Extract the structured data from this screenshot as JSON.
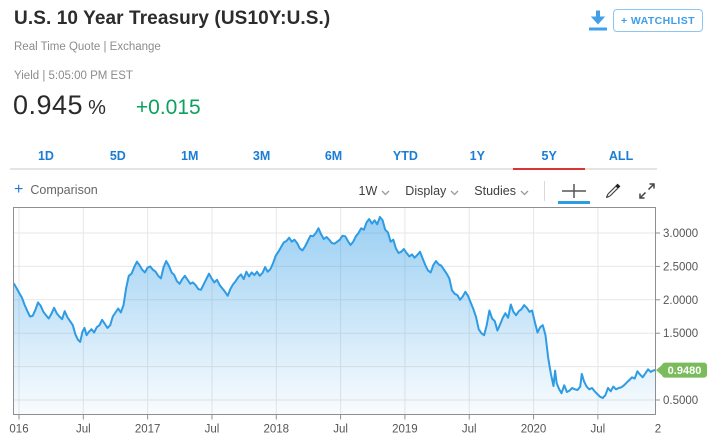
{
  "header": {
    "title": "U.S. 10 Year Treasury (US10Y:U.S.)",
    "subtitle": "Real Time Quote | Exchange",
    "watchlist_label": "+ WATCHLIST"
  },
  "quote": {
    "label": "Yield | 5:05:00 PM EST",
    "value": "0.945",
    "unit": "%",
    "change": "+0.015"
  },
  "range_tabs": {
    "items": [
      "1D",
      "5D",
      "1M",
      "3M",
      "6M",
      "YTD",
      "1Y",
      "5Y",
      "ALL"
    ],
    "selected": "5Y"
  },
  "toolbar": {
    "comparison_label": "Comparison",
    "interval_label": "1W",
    "display_label": "Display",
    "studies_label": "Studies"
  },
  "colors": {
    "accent_blue": "#1b7dd4",
    "change_green": "#0ca15c",
    "selected_tab_red": "#d93535",
    "chart_line_blue": "#2e9be5",
    "badge_green": "#7abc5c",
    "grid_gray": "#e7e7e7",
    "axis_border_gray": "#8f8f8f",
    "tick_text_gray": "#555555"
  },
  "chart_data": {
    "type": "area",
    "series_name": "U.S. 10 Year Treasury yield (5Y, 1W interval)",
    "x_unit": "months since Jan 2016",
    "xlim": [
      0,
      60
    ],
    "ylim": [
      0.29,
      3.39
    ],
    "grid": true,
    "legend": false,
    "y_axis_side": "right",
    "y_gridlines": [
      0.5,
      1.0,
      1.5,
      2.0,
      2.5,
      3.0
    ],
    "y_ticks": [
      {
        "v": 3.0,
        "label": "3.0000"
      },
      {
        "v": 2.5,
        "label": "2.5000"
      },
      {
        "v": 2.0,
        "label": "2.0000"
      },
      {
        "v": 1.5,
        "label": "1.5000"
      },
      {
        "v": 0.5,
        "label": "0.5000"
      }
    ],
    "x_ticks": [
      {
        "t": 0,
        "label": "016"
      },
      {
        "t": 6,
        "label": "Jul"
      },
      {
        "t": 12,
        "label": "2017"
      },
      {
        "t": 18,
        "label": "Jul"
      },
      {
        "t": 24,
        "label": "2018"
      },
      {
        "t": 30,
        "label": "Jul"
      },
      {
        "t": 36,
        "label": "2019"
      },
      {
        "t": 42,
        "label": "Jul"
      },
      {
        "t": 48,
        "label": "2020"
      },
      {
        "t": 54,
        "label": "Jul"
      },
      {
        "t": 60,
        "label": "2"
      }
    ],
    "last_price": {
      "value": 0.948,
      "label": "0.9480"
    },
    "points": [
      [
        0,
        2.24
      ],
      [
        0.25,
        2.17
      ],
      [
        0.5,
        2.1
      ],
      [
        0.75,
        2.03
      ],
      [
        1,
        1.92
      ],
      [
        1.25,
        1.83
      ],
      [
        1.5,
        1.75
      ],
      [
        1.75,
        1.76
      ],
      [
        2,
        1.85
      ],
      [
        2.25,
        1.96
      ],
      [
        2.5,
        1.91
      ],
      [
        2.75,
        1.82
      ],
      [
        3,
        1.77
      ],
      [
        3.25,
        1.72
      ],
      [
        3.5,
        1.79
      ],
      [
        3.75,
        1.88
      ],
      [
        4,
        1.8
      ],
      [
        4.25,
        1.75
      ],
      [
        4.5,
        1.71
      ],
      [
        4.75,
        1.83
      ],
      [
        5,
        1.74
      ],
      [
        5.25,
        1.68
      ],
      [
        5.5,
        1.62
      ],
      [
        5.75,
        1.48
      ],
      [
        6,
        1.4
      ],
      [
        6.2,
        1.37
      ],
      [
        6.4,
        1.52
      ],
      [
        6.6,
        1.58
      ],
      [
        6.8,
        1.47
      ],
      [
        7,
        1.52
      ],
      [
        7.25,
        1.56
      ],
      [
        7.5,
        1.51
      ],
      [
        7.75,
        1.59
      ],
      [
        8,
        1.62
      ],
      [
        8.25,
        1.7
      ],
      [
        8.5,
        1.64
      ],
      [
        8.75,
        1.58
      ],
      [
        9,
        1.62
      ],
      [
        9.25,
        1.75
      ],
      [
        9.5,
        1.81
      ],
      [
        9.75,
        1.87
      ],
      [
        10,
        1.81
      ],
      [
        10.25,
        1.92
      ],
      [
        10.5,
        2.18
      ],
      [
        10.75,
        2.36
      ],
      [
        11,
        2.39
      ],
      [
        11.25,
        2.49
      ],
      [
        11.5,
        2.57
      ],
      [
        11.75,
        2.52
      ],
      [
        12,
        2.45
      ],
      [
        12.25,
        2.41
      ],
      [
        12.5,
        2.48
      ],
      [
        12.75,
        2.5
      ],
      [
        13,
        2.45
      ],
      [
        13.25,
        2.42
      ],
      [
        13.5,
        2.36
      ],
      [
        13.75,
        2.32
      ],
      [
        14,
        2.49
      ],
      [
        14.25,
        2.58
      ],
      [
        14.5,
        2.51
      ],
      [
        14.75,
        2.41
      ],
      [
        15,
        2.37
      ],
      [
        15.25,
        2.28
      ],
      [
        15.5,
        2.24
      ],
      [
        15.75,
        2.31
      ],
      [
        16,
        2.36
      ],
      [
        16.25,
        2.3
      ],
      [
        16.5,
        2.24
      ],
      [
        16.75,
        2.26
      ],
      [
        17,
        2.22
      ],
      [
        17.25,
        2.16
      ],
      [
        17.5,
        2.15
      ],
      [
        17.75,
        2.23
      ],
      [
        18,
        2.31
      ],
      [
        18.25,
        2.39
      ],
      [
        18.5,
        2.32
      ],
      [
        18.75,
        2.26
      ],
      [
        19,
        2.3
      ],
      [
        19.25,
        2.22
      ],
      [
        19.5,
        2.17
      ],
      [
        19.75,
        2.12
      ],
      [
        20,
        2.06
      ],
      [
        20.25,
        2.16
      ],
      [
        20.5,
        2.23
      ],
      [
        20.75,
        2.28
      ],
      [
        21,
        2.34
      ],
      [
        21.25,
        2.38
      ],
      [
        21.5,
        2.31
      ],
      [
        21.75,
        2.42
      ],
      [
        22,
        2.35
      ],
      [
        22.25,
        2.41
      ],
      [
        22.5,
        2.37
      ],
      [
        22.75,
        2.42
      ],
      [
        23,
        2.36
      ],
      [
        23.25,
        2.4
      ],
      [
        23.5,
        2.49
      ],
      [
        23.75,
        2.42
      ],
      [
        24,
        2.46
      ],
      [
        24.25,
        2.55
      ],
      [
        24.5,
        2.66
      ],
      [
        24.75,
        2.72
      ],
      [
        25,
        2.79
      ],
      [
        25.25,
        2.86
      ],
      [
        25.5,
        2.88
      ],
      [
        25.75,
        2.93
      ],
      [
        26,
        2.87
      ],
      [
        26.25,
        2.9
      ],
      [
        26.5,
        2.85
      ],
      [
        26.75,
        2.77
      ],
      [
        27,
        2.74
      ],
      [
        27.25,
        2.8
      ],
      [
        27.5,
        2.88
      ],
      [
        27.75,
        2.96
      ],
      [
        28,
        2.95
      ],
      [
        28.25,
        3.0
      ],
      [
        28.5,
        3.07
      ],
      [
        28.75,
        2.98
      ],
      [
        29,
        2.91
      ],
      [
        29.25,
        2.94
      ],
      [
        29.5,
        2.9
      ],
      [
        29.75,
        2.85
      ],
      [
        30,
        2.84
      ],
      [
        30.25,
        2.87
      ],
      [
        30.5,
        2.9
      ],
      [
        30.75,
        2.96
      ],
      [
        31,
        2.95
      ],
      [
        31.25,
        2.88
      ],
      [
        31.5,
        2.82
      ],
      [
        31.75,
        2.87
      ],
      [
        32,
        2.95
      ],
      [
        32.25,
        3.0
      ],
      [
        32.5,
        3.07
      ],
      [
        32.75,
        3.05
      ],
      [
        33,
        3.16
      ],
      [
        33.25,
        3.21
      ],
      [
        33.5,
        3.14
      ],
      [
        33.75,
        3.19
      ],
      [
        34,
        3.13
      ],
      [
        34.25,
        3.24
      ],
      [
        34.5,
        3.19
      ],
      [
        34.75,
        3.05
      ],
      [
        35,
        3.01
      ],
      [
        35.25,
        2.87
      ],
      [
        35.5,
        2.9
      ],
      [
        35.75,
        2.77
      ],
      [
        36,
        2.7
      ],
      [
        36.25,
        2.72
      ],
      [
        36.5,
        2.76
      ],
      [
        36.75,
        2.7
      ],
      [
        37,
        2.65
      ],
      [
        37.25,
        2.68
      ],
      [
        37.5,
        2.63
      ],
      [
        37.75,
        2.67
      ],
      [
        38,
        2.72
      ],
      [
        38.25,
        2.62
      ],
      [
        38.5,
        2.52
      ],
      [
        38.75,
        2.44
      ],
      [
        39,
        2.41
      ],
      [
        39.25,
        2.52
      ],
      [
        39.5,
        2.58
      ],
      [
        39.75,
        2.53
      ],
      [
        40,
        2.51
      ],
      [
        40.25,
        2.45
      ],
      [
        40.5,
        2.39
      ],
      [
        40.75,
        2.32
      ],
      [
        41,
        2.14
      ],
      [
        41.25,
        2.09
      ],
      [
        41.5,
        2.07
      ],
      [
        41.75,
        2.0
      ],
      [
        42,
        2.05
      ],
      [
        42.25,
        2.12
      ],
      [
        42.5,
        2.06
      ],
      [
        42.75,
        1.96
      ],
      [
        43,
        1.86
      ],
      [
        43.25,
        1.74
      ],
      [
        43.5,
        1.56
      ],
      [
        43.75,
        1.5
      ],
      [
        44,
        1.47
      ],
      [
        44.25,
        1.62
      ],
      [
        44.5,
        1.84
      ],
      [
        44.75,
        1.72
      ],
      [
        45,
        1.68
      ],
      [
        45.25,
        1.54
      ],
      [
        45.5,
        1.63
      ],
      [
        45.75,
        1.73
      ],
      [
        46,
        1.8
      ],
      [
        46.25,
        1.73
      ],
      [
        46.5,
        1.93
      ],
      [
        46.75,
        1.82
      ],
      [
        47,
        1.77
      ],
      [
        47.25,
        1.83
      ],
      [
        47.5,
        1.86
      ],
      [
        47.75,
        1.92
      ],
      [
        48,
        1.88
      ],
      [
        48.25,
        1.82
      ],
      [
        48.5,
        1.84
      ],
      [
        48.75,
        1.67
      ],
      [
        49,
        1.51
      ],
      [
        49.25,
        1.59
      ],
      [
        49.5,
        1.62
      ],
      [
        49.75,
        1.47
      ],
      [
        50,
        1.13
      ],
      [
        50.25,
        0.9
      ],
      [
        50.5,
        0.71
      ],
      [
        50.65,
        0.94
      ],
      [
        50.8,
        0.75
      ],
      [
        51,
        0.67
      ],
      [
        51.25,
        0.6
      ],
      [
        51.5,
        0.72
      ],
      [
        51.75,
        0.62
      ],
      [
        52,
        0.64
      ],
      [
        52.25,
        0.68
      ],
      [
        52.5,
        0.66
      ],
      [
        52.75,
        0.65
      ],
      [
        53,
        0.7
      ],
      [
        53.15,
        0.89
      ],
      [
        53.35,
        0.78
      ],
      [
        53.6,
        0.7
      ],
      [
        53.85,
        0.66
      ],
      [
        54.1,
        0.68
      ],
      [
        54.35,
        0.63
      ],
      [
        54.6,
        0.59
      ],
      [
        54.85,
        0.55
      ],
      [
        55.1,
        0.53
      ],
      [
        55.35,
        0.57
      ],
      [
        55.6,
        0.68
      ],
      [
        55.85,
        0.63
      ],
      [
        56.1,
        0.7
      ],
      [
        56.35,
        0.66
      ],
      [
        56.6,
        0.68
      ],
      [
        56.85,
        0.69
      ],
      [
        57.1,
        0.72
      ],
      [
        57.35,
        0.76
      ],
      [
        57.6,
        0.8
      ],
      [
        57.85,
        0.84
      ],
      [
        58.1,
        0.82
      ],
      [
        58.35,
        0.93
      ],
      [
        58.6,
        0.88
      ],
      [
        58.85,
        0.84
      ],
      [
        59.1,
        0.9
      ],
      [
        59.35,
        0.96
      ],
      [
        59.6,
        0.92
      ],
      [
        59.8,
        0.94
      ],
      [
        60,
        0.948
      ]
    ]
  }
}
